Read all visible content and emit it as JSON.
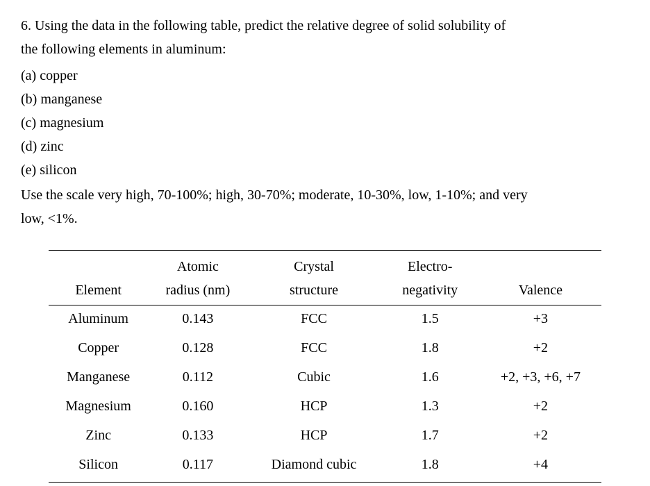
{
  "question": {
    "number": "6.",
    "prompt_line1": "Using the data in the following table, predict the relative degree of solid solubility of",
    "prompt_line2": "the following elements in aluminum:",
    "items": [
      {
        "label": "(a)",
        "text": "copper"
      },
      {
        "label": "(b)",
        "text": "manganese"
      },
      {
        "label": "(c)",
        "text": "magnesium"
      },
      {
        "label": "(d)",
        "text": "zinc"
      },
      {
        "label": "(e)",
        "text": "silicon"
      }
    ],
    "scale_line1": "Use the scale very high, 70-100%; high, 30-70%; moderate, 10-30%, low, 1-10%; and very",
    "scale_line2": "low, <1%."
  },
  "table": {
    "type": "table",
    "border_color": "#000000",
    "background_color": "#ffffff",
    "text_color": "#000000",
    "font_family": "Times New Roman",
    "header_fontsize": 20,
    "body_fontsize": 20,
    "columns": [
      {
        "top": "",
        "bottom": "Element",
        "width_pct": 18,
        "align": "center"
      },
      {
        "top": "Atomic",
        "bottom": "radius (nm)",
        "width_pct": 18,
        "align": "center"
      },
      {
        "top": "Crystal",
        "bottom": "structure",
        "width_pct": 24,
        "align": "center"
      },
      {
        "top": "Electro-",
        "bottom": "negativity",
        "width_pct": 18,
        "align": "center"
      },
      {
        "top": "",
        "bottom": "Valence",
        "width_pct": 22,
        "align": "center"
      }
    ],
    "rows": [
      [
        "Aluminum",
        "0.143",
        "FCC",
        "1.5",
        "+3"
      ],
      [
        "Copper",
        "0.128",
        "FCC",
        "1.8",
        "+2"
      ],
      [
        "Manganese",
        "0.112",
        "Cubic",
        "1.6",
        "+2, +3, +6, +7"
      ],
      [
        "Magnesium",
        "0.160",
        "HCP",
        "1.3",
        "+2"
      ],
      [
        "Zinc",
        "0.133",
        "HCP",
        "1.7",
        "+2"
      ],
      [
        "Silicon",
        "0.117",
        "Diamond cubic",
        "1.8",
        "+4"
      ]
    ]
  }
}
